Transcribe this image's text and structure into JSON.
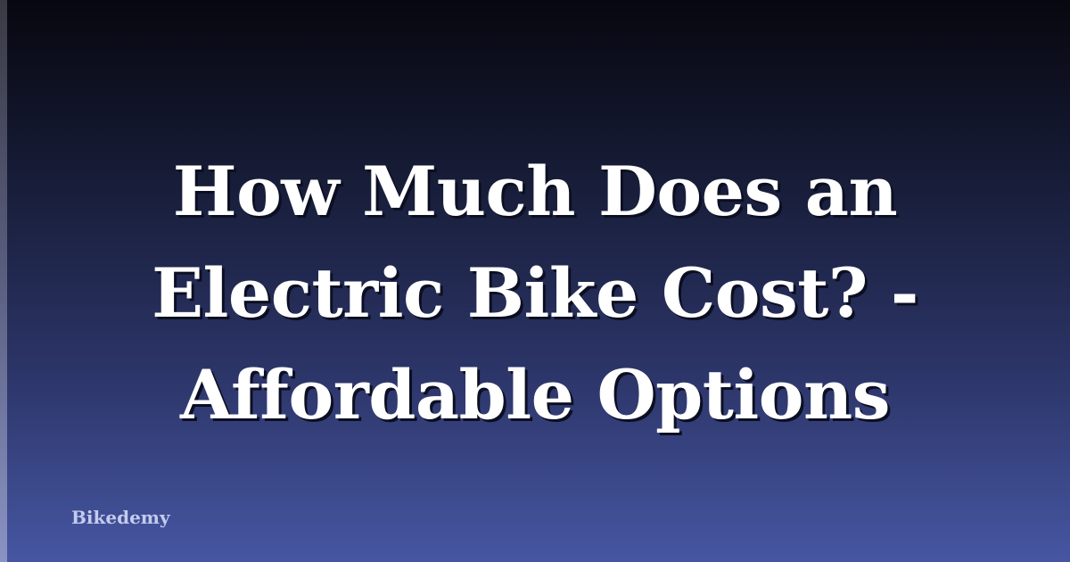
{
  "title_lines": [
    "How Much Does an",
    "Electric Bike Cost? -",
    "Affordable Options"
  ],
  "brand": "Bikedemy",
  "colors": {
    "background_top": "#07070f",
    "background_bottom": "#4656a2",
    "title": "#ffffff",
    "brand": "#c4cbee"
  }
}
